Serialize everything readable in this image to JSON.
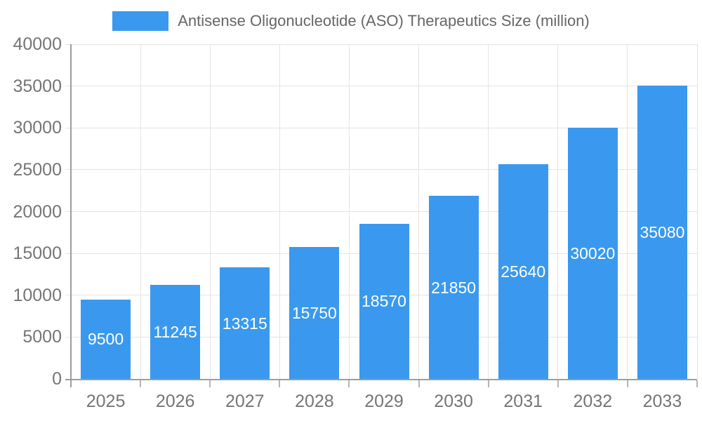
{
  "chart_data": {
    "type": "bar",
    "title": "Antisense Oligonucleotide (ASO) Therapeutics Size (million)",
    "categories": [
      "2025",
      "2026",
      "2027",
      "2028",
      "2029",
      "2030",
      "2031",
      "2032",
      "2033"
    ],
    "values": [
      9500,
      11245,
      13315,
      15750,
      18570,
      21850,
      25640,
      30020,
      35080
    ],
    "xlabel": "",
    "ylabel": "",
    "ylim": [
      0,
      40000
    ],
    "yticks": [
      0,
      5000,
      10000,
      15000,
      20000,
      25000,
      30000,
      35000,
      40000
    ],
    "grid": "on",
    "legend_position": "top",
    "bar_color": "#3a99ee",
    "value_label_color": "#ffffff",
    "axis_text_color": "#757575",
    "legend_text_color": "#666666",
    "grid_color": "#e4e4e4",
    "axis_line_color": "#9d9d9d",
    "tick_color": "#b5b5b5"
  }
}
